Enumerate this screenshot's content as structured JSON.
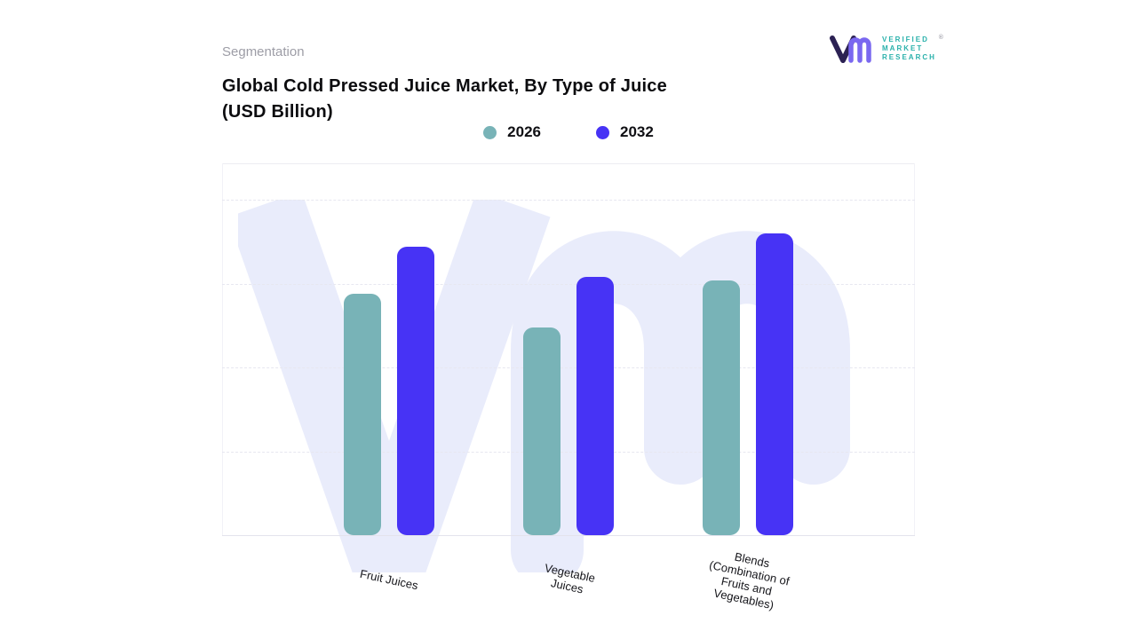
{
  "header": {
    "eyebrow": "Segmentation",
    "title_line1": "Global Cold Pressed Juice Market, By Type of Juice",
    "title_line2": "(USD Billion)"
  },
  "logo": {
    "lines": [
      "VERIFIED",
      "MARKET",
      "RESEARCH"
    ],
    "registered_mark": "®",
    "mark_color_primary": "#2b2153",
    "mark_color_accent": "#7a68f0",
    "text_color": "#2ab1ab"
  },
  "legend": [
    {
      "label": "2026",
      "color": "#78b3b7"
    },
    {
      "label": "2032",
      "color": "#4733f5"
    }
  ],
  "chart_data": {
    "type": "bar",
    "title": "Global Cold Pressed Juice Market, By Type of Juice (USD Billion)",
    "categories": [
      "Fruit Juices",
      "Vegetable Juices",
      "Blends (Combination of Fruits and Vegetables)"
    ],
    "category_label_lines": [
      [
        "Fruit Juices"
      ],
      [
        "Vegetable",
        "Juices"
      ],
      [
        "Blends",
        "(Combination of",
        "Fruits and",
        "Vegetables)"
      ]
    ],
    "series": [
      {
        "name": "2026",
        "color": "#78b3b7",
        "values": [
          72,
          62,
          76
        ]
      },
      {
        "name": "2032",
        "color": "#4733f5",
        "values": [
          86,
          77,
          90
        ]
      }
    ],
    "ylim": [
      0,
      100
    ],
    "y_axis_labels_visible": false,
    "values_note": "no numeric axis labels shown; values estimated as % of plot height",
    "grid": "horizontal-dashed",
    "legend_position": "top-center",
    "group_centers_pct": [
      24.1,
      50,
      75.9
    ]
  },
  "watermark": {
    "text": "Vm",
    "color": "#e9ecfb"
  }
}
